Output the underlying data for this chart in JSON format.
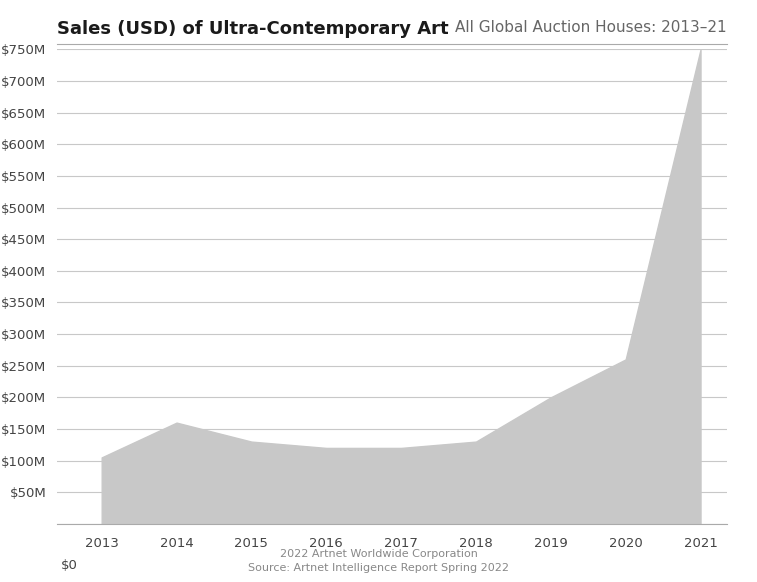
{
  "years": [
    2013,
    2014,
    2015,
    2016,
    2017,
    2018,
    2019,
    2020,
    2021
  ],
  "values": [
    105,
    160,
    130,
    120,
    120,
    130,
    200,
    260,
    750
  ],
  "fill_color": "#c8c8c8",
  "title_left": "Sales (USD) of Ultra-Contemporary Art",
  "title_right": "All Global Auction Houses: 2013–21",
  "footer_line1": "2022 Artnet Worldwide Corporation",
  "footer_line2": "Source: Artnet Intelligence Report Spring 2022",
  "ylim": [
    0,
    750
  ],
  "ytick_step": 50,
  "xlim_left": 2012.4,
  "xlim_right": 2021.35,
  "background_color": "#ffffff",
  "grid_color": "#c8c8c8",
  "title_fontsize": 13,
  "subtitle_fontsize": 11,
  "tick_fontsize": 9.5,
  "footer_fontsize": 8
}
